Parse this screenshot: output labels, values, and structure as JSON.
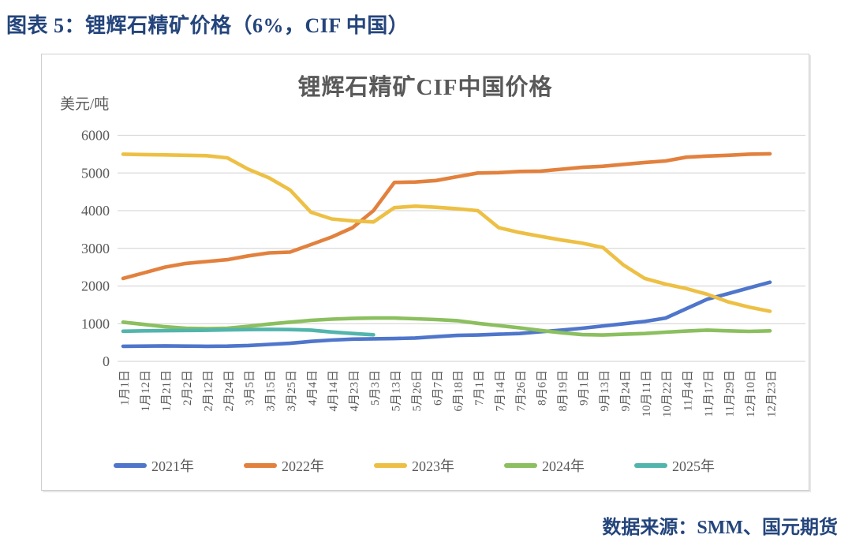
{
  "header": {
    "caption": "图表 5：锂辉石精矿价格（6%，CIF 中国）"
  },
  "footer": {
    "source": "数据来源：SMM、国元期货"
  },
  "colors": {
    "caption_navy": "#24457C",
    "axis_text_gray": "#595959",
    "gridline_gray": "#D9D9D9"
  },
  "chart_data": {
    "type": "line",
    "title": "锂辉石精矿CIF中国价格",
    "unit_label": "美元/吨",
    "xlabel": "",
    "ylabel": "美元/吨",
    "ylim": [
      0,
      6000
    ],
    "ytick_step": 1000,
    "yticks": [
      0,
      1000,
      2000,
      3000,
      4000,
      5000,
      6000
    ],
    "grid": "horizontal",
    "legend_position": "bottom",
    "categories": [
      "1月1日",
      "1月12日",
      "1月21日",
      "2月2日",
      "2月12日",
      "2月24日",
      "3月5日",
      "3月15日",
      "3月25日",
      "4月4日",
      "4月14日",
      "4月23日",
      "5月3日",
      "5月13日",
      "5月26日",
      "6月7日",
      "6月18日",
      "7月1日",
      "7月14日",
      "7月26日",
      "8月6日",
      "8月19日",
      "9月1日",
      "9月13日",
      "9月24日",
      "10月11日",
      "10月22日",
      "11月4日",
      "11月17日",
      "11月29日",
      "12月10日",
      "12月23日"
    ],
    "series": [
      {
        "name": "2021年",
        "color": "#4F76CB",
        "values": [
          400,
          405,
          410,
          405,
          400,
          405,
          420,
          450,
          480,
          530,
          565,
          590,
          600,
          605,
          620,
          655,
          690,
          700,
          720,
          740,
          785,
          830,
          880,
          940,
          1000,
          1060,
          1150,
          1400,
          1650,
          1800,
          1950,
          2100
        ]
      },
      {
        "name": "2022年",
        "color": "#E2813E",
        "values": [
          2200,
          2350,
          2500,
          2600,
          2650,
          2700,
          2800,
          2880,
          2900,
          3100,
          3300,
          3550,
          4000,
          4750,
          4760,
          4800,
          4900,
          5000,
          5010,
          5040,
          5050,
          5100,
          5150,
          5180,
          5230,
          5280,
          5320,
          5420,
          5450,
          5470,
          5500,
          5510
        ]
      },
      {
        "name": "2023年",
        "color": "#EDC045",
        "values": [
          5500,
          5490,
          5480,
          5470,
          5460,
          5400,
          5100,
          4870,
          4550,
          3960,
          3780,
          3730,
          3700,
          4080,
          4120,
          4090,
          4050,
          4000,
          3550,
          3420,
          3320,
          3220,
          3140,
          3020,
          2550,
          2200,
          2050,
          1930,
          1780,
          1580,
          1440,
          1330
        ]
      },
      {
        "name": "2024年",
        "color": "#8BBF5F",
        "values": [
          1040,
          980,
          920,
          880,
          870,
          880,
          930,
          990,
          1040,
          1090,
          1120,
          1140,
          1150,
          1150,
          1130,
          1110,
          1080,
          1010,
          950,
          890,
          820,
          760,
          710,
          700,
          720,
          740,
          775,
          805,
          830,
          810,
          795,
          810
        ]
      },
      {
        "name": "2025年",
        "color": "#52B5AD",
        "values": [
          800,
          810,
          815,
          820,
          825,
          835,
          845,
          850,
          845,
          830,
          780,
          740,
          705,
          null,
          null,
          null,
          null,
          null,
          null,
          null,
          null,
          null,
          null,
          null,
          null,
          null,
          null,
          null,
          null,
          null,
          null,
          null
        ]
      }
    ]
  }
}
